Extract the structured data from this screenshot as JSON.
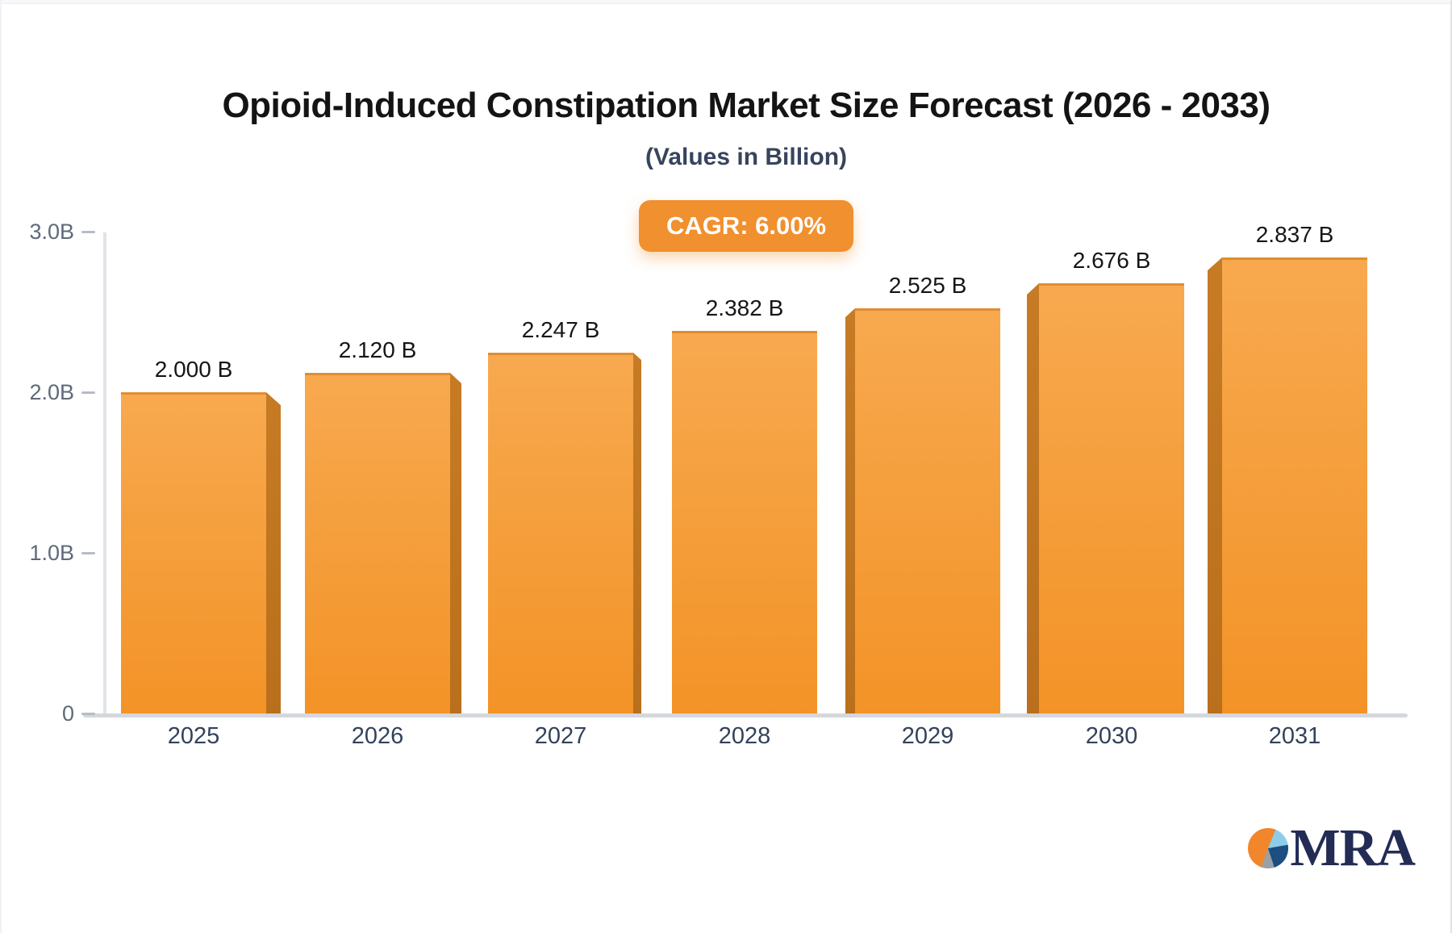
{
  "page": {
    "title": "Opioid-Induced Constipation Market Size Forecast (2026 - 2033)",
    "subtitle": "(Values in Billion)",
    "cagr_badge": "CAGR: 6.00%"
  },
  "logo": {
    "text": "MRA",
    "pie_colors": [
      "#f1862c",
      "#8ecde9",
      "#1c4e7f",
      "#9aa0a6"
    ]
  },
  "colors": {
    "bar_face_top": "#f8a94f",
    "bar_face_bottom": "#f39327",
    "bar_side": "#bf741f",
    "accent_badge": "#f1902e",
    "axis_line": "#d4d7dc",
    "ytick_text": "#5e6a7a",
    "xtick_text": "#33425b",
    "value_text": "#161616"
  },
  "chart_data": {
    "type": "bar",
    "title": "Opioid-Induced Constipation Market Size Forecast (2026 - 2033)",
    "subtitle": "(Values in Billion)",
    "annotation": "CAGR: 6.00%",
    "categories": [
      "2025",
      "2026",
      "2027",
      "2028",
      "2029",
      "2030",
      "2031"
    ],
    "values": [
      2.0,
      2.12,
      2.247,
      2.382,
      2.525,
      2.676,
      2.837
    ],
    "value_labels": [
      "2.000 B",
      "2.120 B",
      "2.247 B",
      "2.382 B",
      "2.525 B",
      "2.676 B",
      "2.837 B"
    ],
    "unit": "B",
    "ylim": [
      0,
      3.0
    ],
    "yticks": [
      {
        "label": "3.0B",
        "value": 3.0
      },
      {
        "label": "2.0B",
        "value": 2.0
      },
      {
        "label": "1.0B",
        "value": 1.0
      },
      {
        "label": "0",
        "value": 0
      }
    ],
    "grid": false,
    "legend": false,
    "style": "3d-extruded-bars, perspective vanishing toward center column"
  }
}
